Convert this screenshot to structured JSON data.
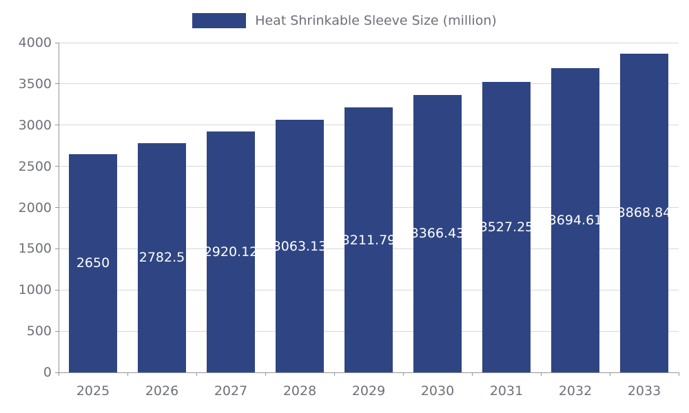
{
  "legend": {
    "label": "Heat Shrinkable Sleeve Size (million)"
  },
  "chart_data": {
    "type": "bar",
    "title": "Heat Shrinkable Sleeve Size (million)",
    "categories": [
      "2025",
      "2026",
      "2027",
      "2028",
      "2029",
      "2030",
      "2031",
      "2032",
      "2033"
    ],
    "values": [
      2650,
      2782.5,
      2920.12,
      3063.13,
      3211.79,
      3366.43,
      3527.25,
      3694.61,
      3868.84
    ],
    "value_labels": [
      "2650",
      "2782.5",
      "2920.12",
      "3063.13",
      "3211.79",
      "3366.43",
      "3527.25",
      "3694.61",
      "3868.84"
    ],
    "xlabel": "",
    "ylabel": "",
    "ylim": [
      0,
      4000
    ],
    "ytick_step": 500,
    "ytick_labels": [
      "0",
      "500",
      "1000",
      "1500",
      "2000",
      "2500",
      "3000",
      "3500",
      "4000"
    ],
    "grid": true,
    "legend_position": "top",
    "bar_color": "#2F4583",
    "value_label_color": "#ffffff",
    "axis_label_color": "#6E7079"
  }
}
